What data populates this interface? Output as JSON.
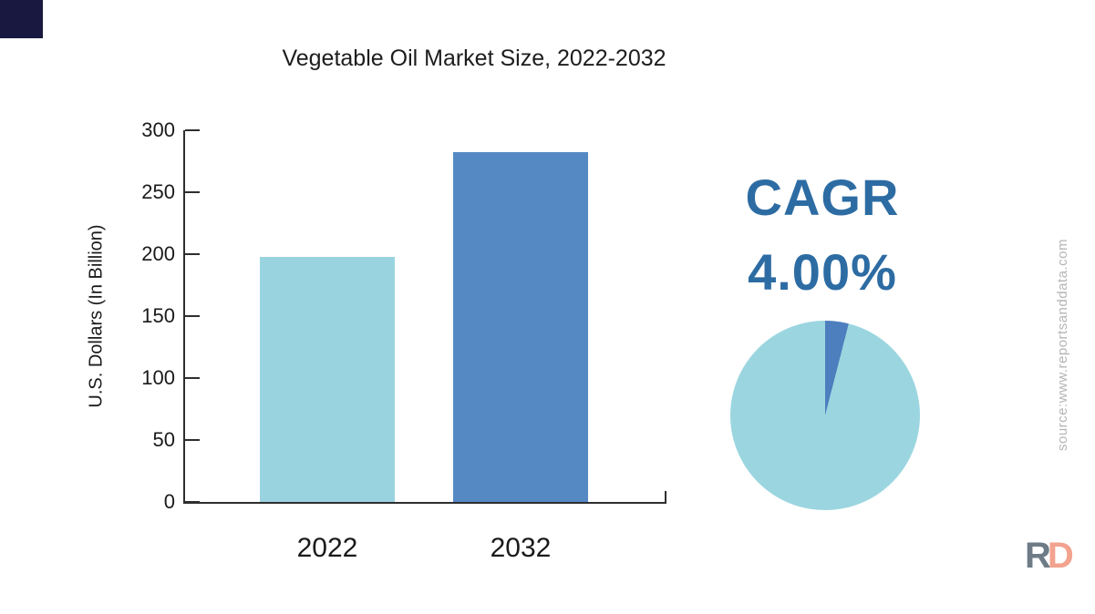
{
  "title": "Vegetable Oil Market Size, 2022-2032",
  "chart_data": {
    "type": "bar",
    "title": "Vegetable Oil Market Size, 2022-2032",
    "categories": [
      "2022",
      "2032"
    ],
    "values": [
      198,
      282
    ],
    "xlabel": "",
    "ylabel": "U.S. Dollars (In Billion)",
    "ylim": [
      0,
      300
    ],
    "yticks": [
      0,
      50,
      100,
      150,
      200,
      250,
      300
    ],
    "bar_colors": [
      "#9ad3e0",
      "#5589c4"
    ],
    "grid": false,
    "legend": null
  },
  "cagr": {
    "label": "CAGR",
    "value": "4.00%",
    "percent": 4.0,
    "color": "#2d6ca3"
  },
  "pie": {
    "type": "pie",
    "highlight_percent": 4.0,
    "slice_color": "#4d7fbe",
    "remainder_color": "#9bd6e0"
  },
  "source": {
    "text": "source:www.reportsanddata.com",
    "color": "#b5b5b5"
  },
  "logo": {
    "letter_r": "R",
    "letter_d": "D",
    "r_color": "#6e7c87",
    "d_color": "#f2a28e"
  },
  "decor": {
    "corner_square_color": "#181840"
  }
}
